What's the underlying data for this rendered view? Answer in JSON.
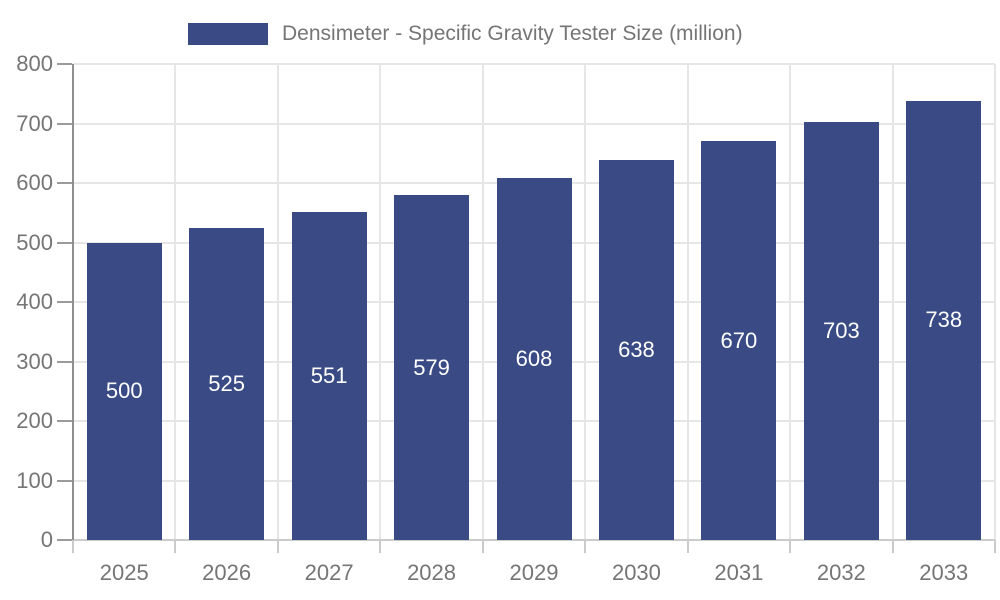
{
  "chart_data": {
    "type": "bar",
    "title": "Densimeter - Specific Gravity Tester Size (million)",
    "legend": {
      "label": "Densimeter - Specific Gravity Tester Size (million)",
      "position": "top-center"
    },
    "categories": [
      "2025",
      "2026",
      "2027",
      "2028",
      "2029",
      "2030",
      "2031",
      "2032",
      "2033"
    ],
    "series": [
      {
        "name": "Densimeter - Specific Gravity Tester Size (million)",
        "values": [
          500,
          525,
          551,
          579,
          608,
          638,
          670,
          703,
          738
        ]
      }
    ],
    "value_labels_shown": true,
    "xlabel": "",
    "ylabel": "",
    "ylim": [
      0,
      800
    ],
    "ytick_step": 100,
    "yticklabels": [
      "0",
      "100",
      "200",
      "300",
      "400",
      "500",
      "600",
      "700",
      "800"
    ],
    "grid": "on",
    "colors": {
      "bar": "#394A85",
      "axis_text": "#757575",
      "value_label": "#FFFFFF",
      "gridline": "#E6E6E6",
      "axis_line": "#8F8F8F",
      "x_baseline": "#CBCBCB"
    }
  }
}
